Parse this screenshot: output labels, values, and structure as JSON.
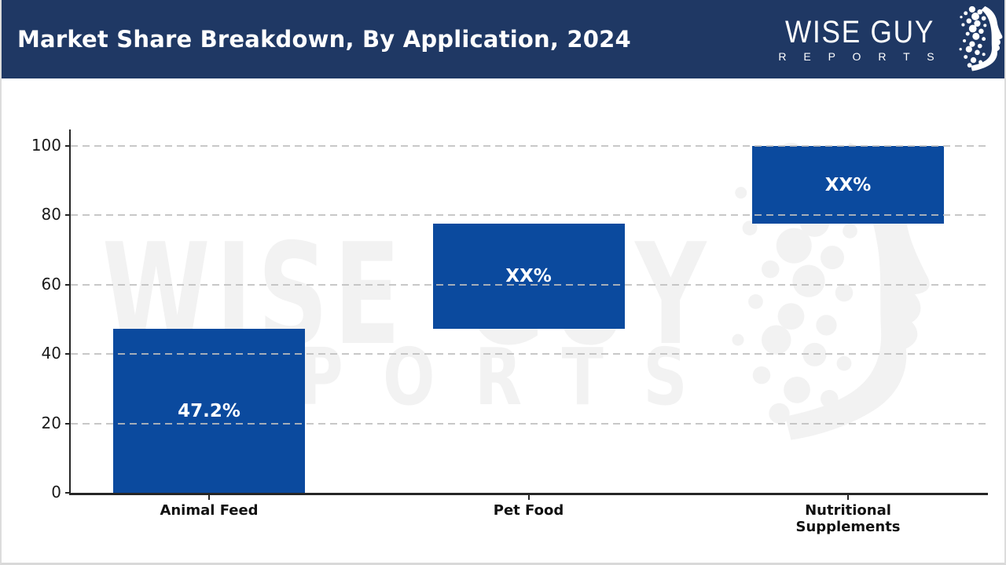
{
  "header": {
    "title": "Market Share Breakdown, By Application, 2024",
    "logo": {
      "line1": "WISE GUY",
      "line2": "R E P O R T S"
    }
  },
  "watermark": {
    "line1": "WISE GUY",
    "line2": "R E P O R T S"
  },
  "colors": {
    "header_bg": "#1f3864",
    "bar": "#0b4a9e",
    "bar_label": "#ffffff",
    "grid": "#c9c9c9",
    "axis": "#262626",
    "watermark": "#f2f2f2"
  },
  "chart_data": {
    "type": "bar",
    "subtype": "floating-waterfall",
    "title": "Market Share Breakdown, By Application, 2024",
    "unit": "%",
    "categories": [
      "Animal Feed",
      "Pet Food",
      "Nutritional Supplements"
    ],
    "categories_display": [
      "Animal Feed",
      "Pet Food",
      "Nutritional\nSupplements"
    ],
    "segments": [
      {
        "category": "Animal Feed",
        "start": 0,
        "end": 47.2,
        "label": "47.2%"
      },
      {
        "category": "Pet Food",
        "start": 47.2,
        "end": 77.5,
        "label": "XX%"
      },
      {
        "category": "Nutritional Supplements",
        "start": 77.5,
        "end": 100,
        "label": "XX%"
      }
    ],
    "yticks": [
      0,
      20,
      40,
      60,
      80,
      100
    ],
    "ylim": [
      0,
      104.8
    ],
    "grid": "dashed-horizontal",
    "legend": false
  }
}
